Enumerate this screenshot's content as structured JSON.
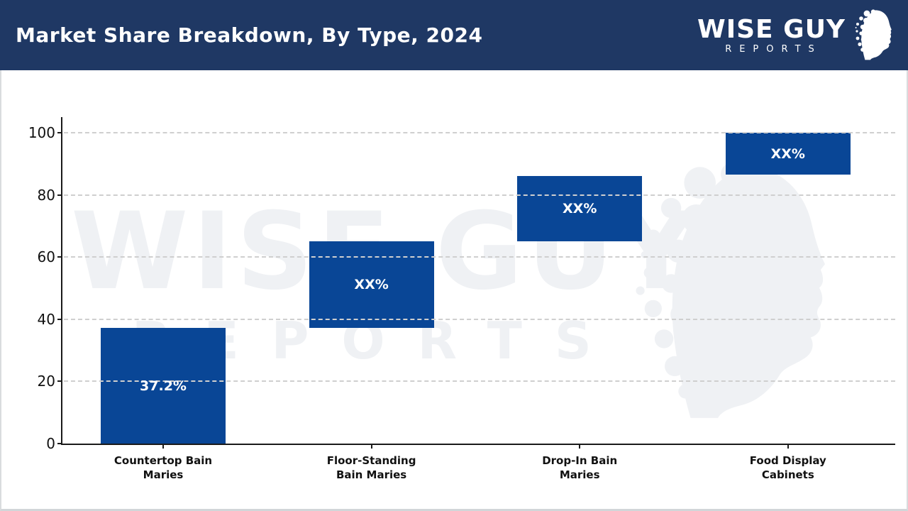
{
  "header": {
    "title": "Market Share Breakdown, By Type, 2024",
    "logo": {
      "line1": "WISE GUY",
      "line2": "REPORTS"
    }
  },
  "watermark": {
    "line1": "WISE GUY",
    "line2": "REPORTS"
  },
  "chart_data": {
    "type": "bar",
    "subtype": "floating-segment-waterfall",
    "title": "Market Share Breakdown, By Type, 2024",
    "categories": [
      "Countertop Bain\nMaries",
      "Floor-Standing\nBain Maries",
      "Drop-In Bain\nMaries",
      "Food Display\nCabinets"
    ],
    "bars": [
      {
        "category": "Countertop Bain Maries",
        "start": 0,
        "end": 37.2,
        "label": "37.2%"
      },
      {
        "category": "Floor-Standing Bain Maries",
        "start": 37.2,
        "end": 65,
        "label": "XX%"
      },
      {
        "category": "Drop-In Bain Maries",
        "start": 65,
        "end": 86,
        "label": "XX%"
      },
      {
        "category": "Food Display Cabinets",
        "start": 86.5,
        "end": 100,
        "label": "XX%"
      }
    ],
    "ylim": [
      0,
      100
    ],
    "yticks": [
      0,
      20,
      40,
      60,
      80,
      100
    ],
    "xlabel": "",
    "ylabel": "",
    "grid": "horizontal-dashed",
    "legend": "none",
    "bar_color": "#094696",
    "bar_label_color": "#ffffff"
  },
  "colors": {
    "header_bg": "#1f3864",
    "bar": "#094696",
    "grid": "#cfcfcf",
    "axis": "#1a1a1a",
    "watermark": "#eff1f4"
  }
}
